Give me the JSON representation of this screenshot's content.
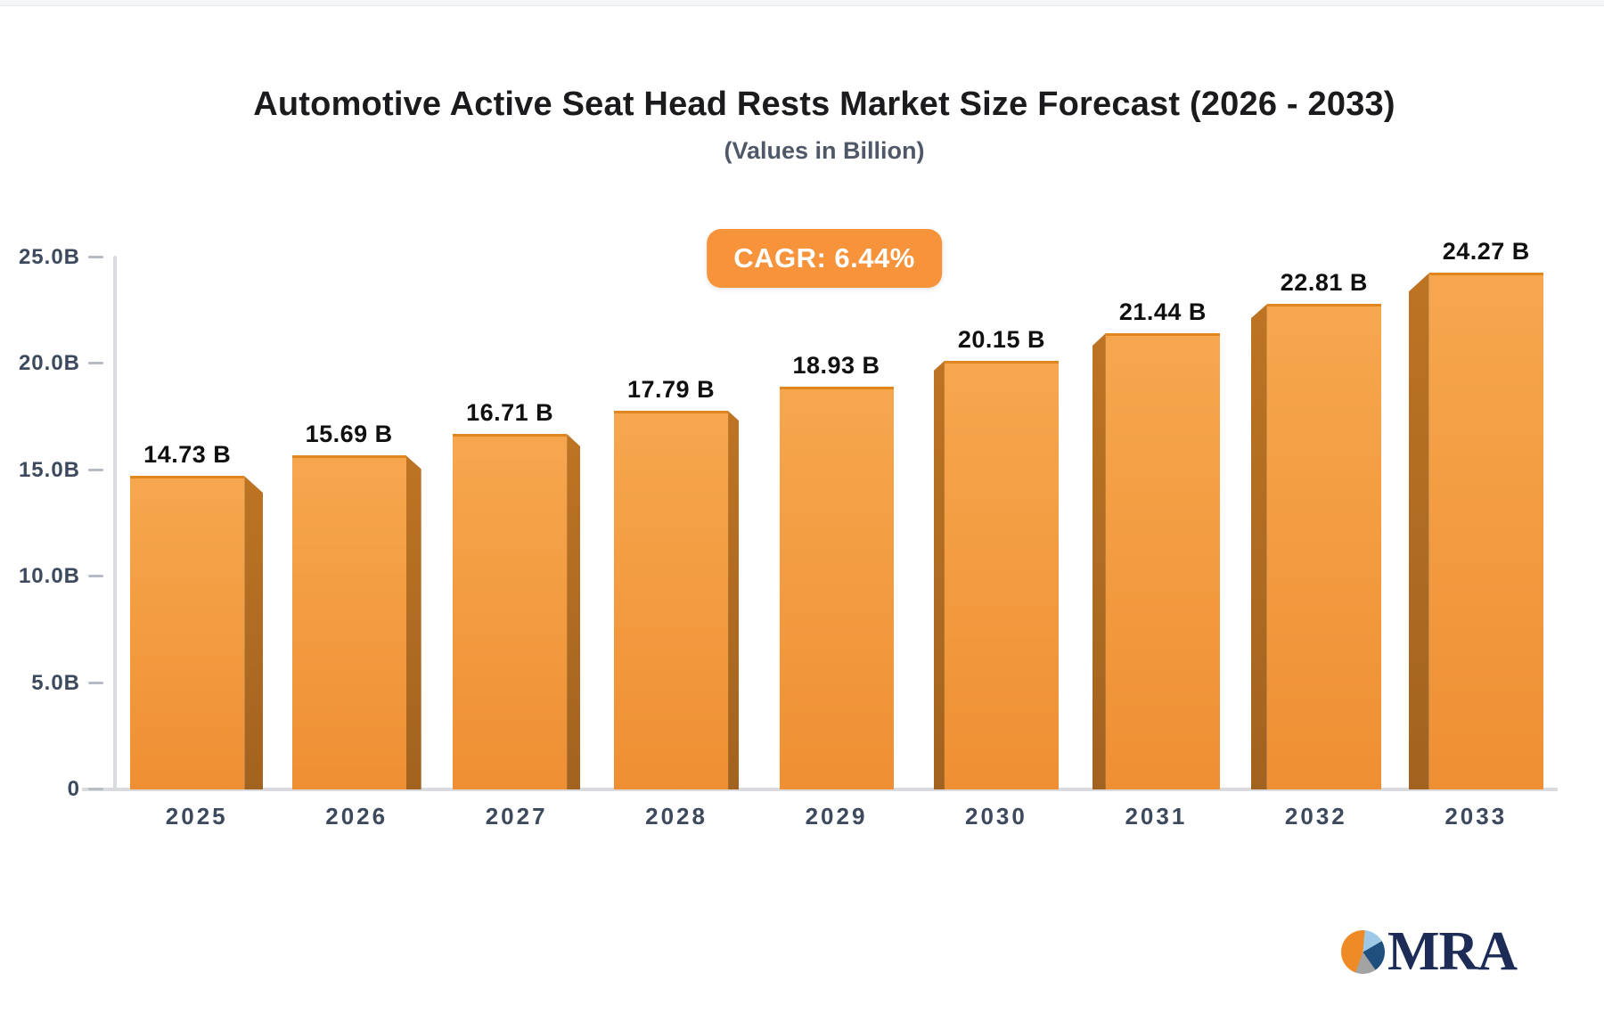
{
  "header": {
    "title": "Automotive Active Seat Head Rests Market Size Forecast (2026 - 2033)",
    "subtitle": "(Values in Billion)",
    "cagr_badge": "CAGR: 6.44%"
  },
  "chart_data": {
    "type": "bar",
    "title": "Automotive Active Seat Head Rests Market Size Forecast (2026 - 2033)",
    "subtitle": "(Values in Billion)",
    "cagr_pct": 6.44,
    "categories": [
      "2025",
      "2026",
      "2027",
      "2028",
      "2029",
      "2030",
      "2031",
      "2032",
      "2033"
    ],
    "values": [
      14.73,
      15.69,
      16.71,
      17.79,
      18.93,
      20.15,
      21.44,
      22.81,
      24.27
    ],
    "value_labels": [
      "14.73 B",
      "15.69 B",
      "16.71 B",
      "17.79 B",
      "18.93 B",
      "20.15 B",
      "21.44 B",
      "22.81 B",
      "24.27 B"
    ],
    "y_axis": {
      "ylim": [
        0,
        25
      ],
      "tick_values": [
        25,
        20,
        15,
        10,
        5,
        0
      ],
      "tick_labels": [
        "25.0B",
        "20.0B",
        "15.0B",
        "10.0B",
        "5.0B",
        "0"
      ]
    },
    "grid": false,
    "legend": null,
    "bar_style": {
      "face_top": "#f6a74e",
      "face_bottom": "#ef8f33",
      "face_edge": "#e0861f",
      "side_top": "#bd7423",
      "side_bottom": "#a26320"
    }
  },
  "colors": {
    "accent_orange": "#f6933b",
    "axis_text": "#3d4a5e",
    "axis_line": "#d9dbdf",
    "value_text": "#101010"
  },
  "logo": {
    "text": "MRA",
    "text_color": "#1d2b57",
    "pie_segments": [
      {
        "name": "blue",
        "color": "#9dc8e6",
        "from": 5,
        "to": 60
      },
      {
        "name": "navy",
        "color": "#1f4f7d",
        "from": 60,
        "to": 145
      },
      {
        "name": "gray",
        "color": "#a3a3a3",
        "from": 145,
        "to": 200
      },
      {
        "name": "orange",
        "color": "#ef8b27",
        "from": 200,
        "to": 365
      }
    ]
  }
}
